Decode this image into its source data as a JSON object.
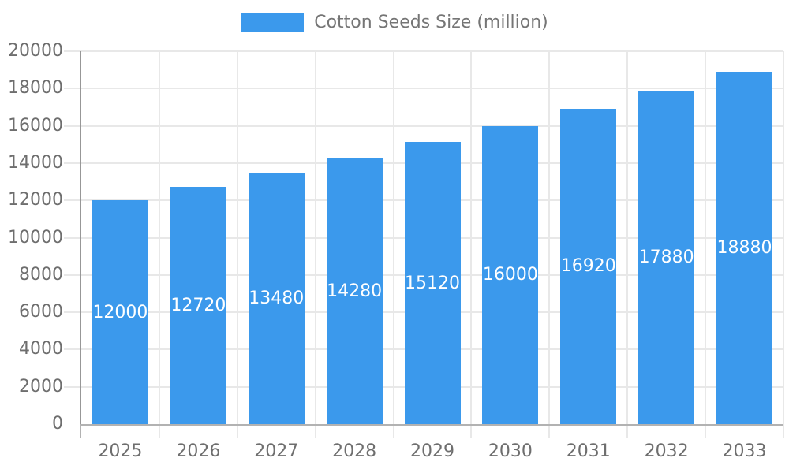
{
  "legend": {
    "label": "Cotton Seeds Size (million)"
  },
  "colors": {
    "bar": "#3B99EC",
    "grid": "#E8E8E8",
    "y_axis_line": "#979797",
    "x_axis_line": "#B2B2B2",
    "tick_text": "#6E6E6E",
    "legend_text": "#757575",
    "value_text": "#FFFFFF",
    "background": "#FFFFFF"
  },
  "chart_data": {
    "type": "bar",
    "title": "Cotton Seeds Size (million)",
    "categories": [
      "2025",
      "2026",
      "2027",
      "2028",
      "2029",
      "2030",
      "2031",
      "2032",
      "2033"
    ],
    "series": [
      {
        "name": "Cotton Seeds Size (million)",
        "values": [
          12000,
          12720,
          13480,
          14280,
          15120,
          16000,
          16920,
          17880,
          18880
        ]
      }
    ],
    "value_labels": [
      "12000",
      "12720",
      "13480",
      "14280",
      "15120",
      "16000",
      "16920",
      "17880",
      "18880"
    ],
    "xlabel": "",
    "ylabel": "",
    "ylim": [
      0,
      20000
    ],
    "ytick_step": 2000,
    "yticks": [
      "0",
      "2000",
      "4000",
      "6000",
      "8000",
      "10000",
      "12000",
      "14000",
      "16000",
      "18000",
      "20000"
    ],
    "grid": true,
    "legend_position": "top-center",
    "value_label_position": "inside-center"
  }
}
